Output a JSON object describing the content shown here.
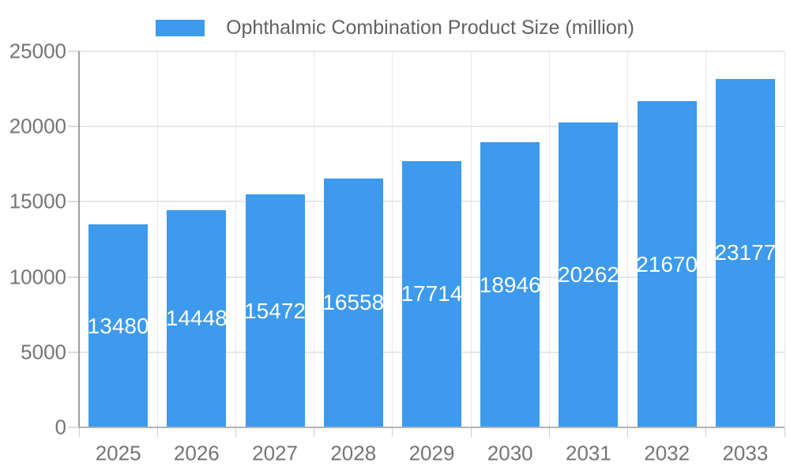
{
  "chart_data": {
    "type": "bar",
    "title": "Ophthalmic Combination Product Size (million)",
    "categories": [
      "2025",
      "2026",
      "2027",
      "2028",
      "2029",
      "2030",
      "2031",
      "2032",
      "2033"
    ],
    "values": [
      13480,
      14448,
      15472,
      16558,
      17714,
      18946,
      20262,
      21670,
      23177
    ],
    "xlabel": "",
    "ylabel": "",
    "ylim": [
      0,
      25000
    ],
    "y_ticks": [
      0,
      5000,
      10000,
      15000,
      20000,
      25000
    ],
    "grid": true,
    "legend_position": "top",
    "bar_color": "#3D9AED",
    "bar_label_color": "#ffffff",
    "axis_label_color": "#757575"
  },
  "legend": {
    "label": "Ophthalmic Combination Product Size (million)",
    "swatch_color": "#3D9AED"
  }
}
